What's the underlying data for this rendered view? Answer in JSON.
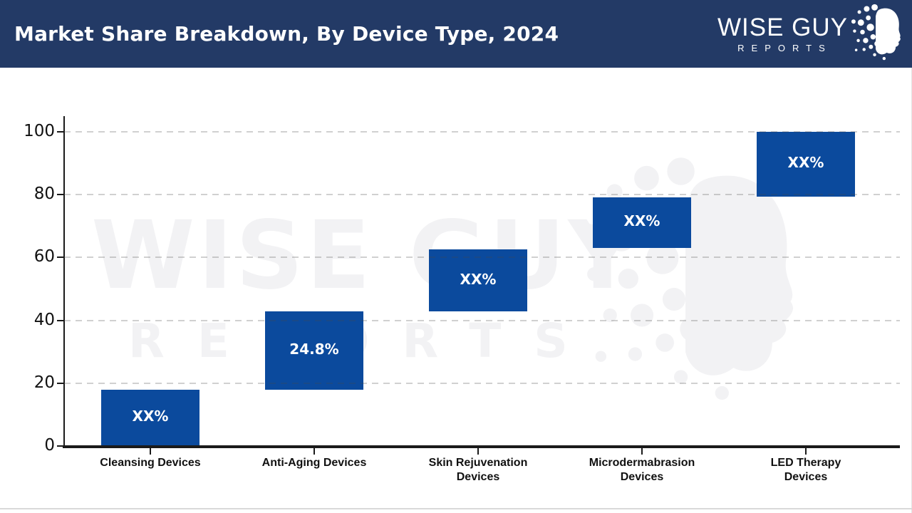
{
  "header": {
    "title": "Market Share Breakdown, By Device Type, 2024",
    "logo": {
      "name": "WISE GUY",
      "subtitle": "REPORTS"
    }
  },
  "watermark": {
    "line1": "WISE GUY",
    "line2": "REPORTS"
  },
  "chart_data": {
    "type": "bar",
    "subtype": "waterfall-floating-bars",
    "title": "Market Share Breakdown, By Device Type, 2024",
    "xlabel": "",
    "ylabel": "",
    "categories": [
      "Cleansing Devices",
      "Anti-Aging Devices",
      "Skin Rejuvenation\nDevices",
      "Microdermabrasion\nDevices",
      "LED Therapy\nDevices"
    ],
    "segments": [
      {
        "category": "Cleansing Devices",
        "start": 0,
        "end": 18.0,
        "label": "XX%"
      },
      {
        "category": "Anti-Aging Devices",
        "start": 18.0,
        "end": 42.8,
        "label": "24.8%"
      },
      {
        "category": "Skin Rejuvenation Devices",
        "start": 42.8,
        "end": 62.5,
        "label": "XX%"
      },
      {
        "category": "Microdermabrasion Devices",
        "start": 63.0,
        "end": 79.2,
        "label": "XX%"
      },
      {
        "category": "LED Therapy Devices",
        "start": 79.4,
        "end": 100.0,
        "label": "XX%"
      }
    ],
    "yticks": [
      0,
      20,
      40,
      60,
      80,
      100
    ],
    "ylim": [
      0,
      105
    ],
    "grid": "horizontal dashed, drawn over bars",
    "legend": "none",
    "bar_color": "#0b4a9d",
    "header_color": "#233a66"
  }
}
